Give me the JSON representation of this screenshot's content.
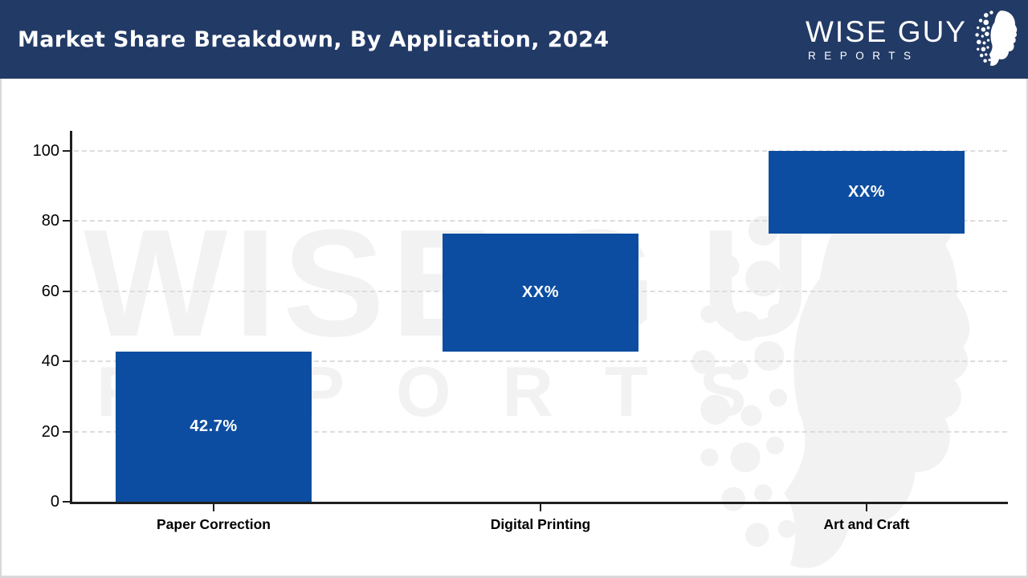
{
  "header": {
    "title": "Market Share Breakdown, By Application, 2024",
    "logo": {
      "line1": "WISE GUY",
      "line2": "REPORTS"
    }
  },
  "watermark": {
    "word1": "WISE",
    "word2": "GUY",
    "line2": "REPORTS"
  },
  "colors": {
    "header_bg": "#223a66",
    "bar": "#0d4da1",
    "bar_label": "#ffffff",
    "grid": "#dcdcdc",
    "axis": "#1f1f1f",
    "tick_text": "#000000",
    "title_text": "#ffffff",
    "watermark": "#f2f2f2",
    "card_border": "#d9d9d9"
  },
  "chart_data": {
    "type": "bar",
    "variant": "floating-segment-breakdown",
    "title": "Market Share Breakdown, By Application, 2024",
    "categories": [
      "Paper Correction",
      "Digital Printing",
      "Art and Craft"
    ],
    "bars": [
      {
        "category": "Paper Correction",
        "start": 0,
        "end": 42.7,
        "label": "42.7%"
      },
      {
        "category": "Digital Printing",
        "start": 42.7,
        "end": 76.5,
        "label": "XX%"
      },
      {
        "category": "Art and Craft",
        "start": 76.5,
        "end": 100,
        "label": "XX%"
      }
    ],
    "ylim": [
      0,
      100
    ],
    "yticks": [
      0,
      20,
      40,
      60,
      80,
      100
    ],
    "xlabel": "",
    "ylabel": "",
    "grid": "horizontal-dashed",
    "legend": "none"
  }
}
